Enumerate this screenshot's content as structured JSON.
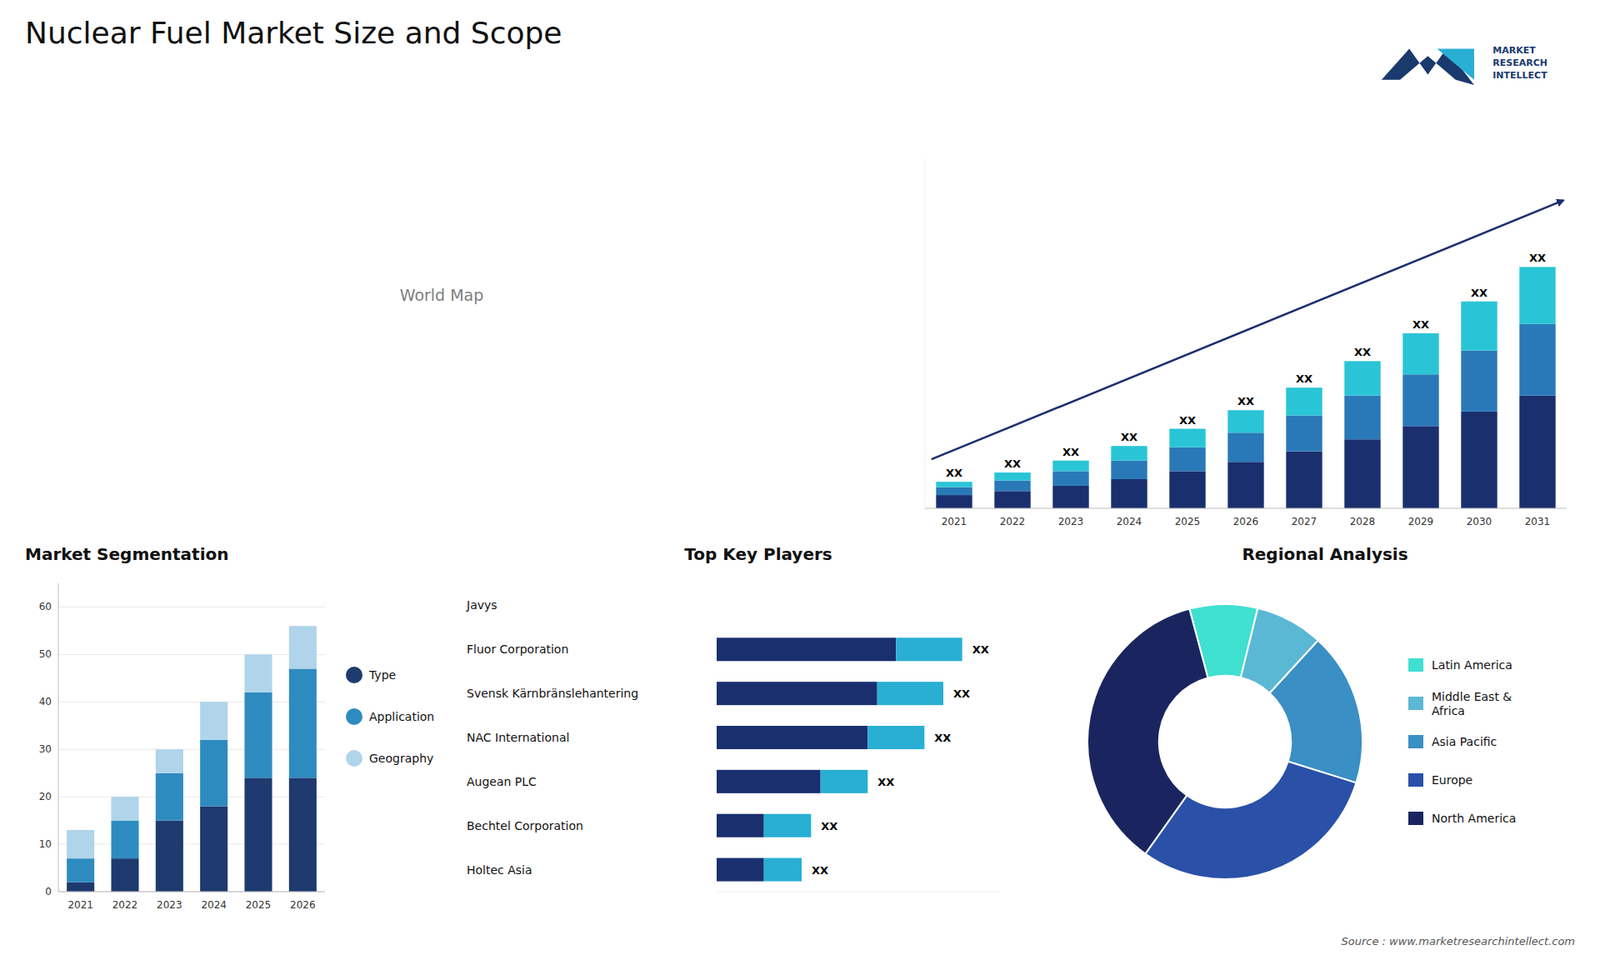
{
  "title": "Nuclear Fuel Market Size and Scope",
  "annotations": [
    "MARKET\nRESEARCH\nINTELLECT",
    "Source : www.marketresearchintellect.com"
  ],
  "chart_data": [
    {
      "type": "map",
      "annotations": [
        "World Map"
      ]
    },
    {
      "type": "bar",
      "stacked": true,
      "categories": [
        "2021",
        "2022",
        "2023",
        "2024",
        "2025",
        "2026",
        "2027",
        "2028",
        "2029",
        "2030",
        "2031"
      ],
      "series": [
        {
          "color": "#1a2f6e",
          "values": [
            1.0,
            1.3,
            1.7,
            2.2,
            2.8,
            3.5,
            4.3,
            5.2,
            6.2,
            7.3,
            8.5
          ]
        },
        {
          "color": "#2979b8",
          "values": [
            0.6,
            0.8,
            1.1,
            1.4,
            1.8,
            2.2,
            2.7,
            3.3,
            3.9,
            4.6,
            5.4
          ]
        },
        {
          "color": "#29c5d6",
          "values": [
            0.4,
            0.6,
            0.8,
            1.1,
            1.4,
            1.7,
            2.1,
            2.6,
            3.1,
            3.7,
            4.3
          ]
        }
      ],
      "ylim": [
        0,
        26.39
      ],
      "tick_labels": "x",
      "grid": false,
      "annotations": [
        "XX",
        "XX",
        "XX",
        "XX",
        "XX",
        "XX",
        "XX",
        "XX",
        "XX",
        "XX",
        "XX"
      ]
    },
    {
      "type": "bar",
      "stacked": true,
      "title": "Market Segmentation",
      "categories": [
        "2021",
        "2022",
        "2023",
        "2024",
        "2025",
        "2026"
      ],
      "series": [
        {
          "name": "Type",
          "color": "#1e3a6e",
          "values": [
            2,
            7,
            15,
            18,
            24,
            24
          ]
        },
        {
          "name": "Application",
          "color": "#2e8bc0",
          "values": [
            5,
            8,
            10,
            14,
            18,
            23
          ]
        },
        {
          "name": "Geography",
          "color": "#b0d4ea",
          "values": [
            6,
            5,
            5,
            8,
            8,
            9
          ]
        }
      ],
      "ylim": [
        0,
        65
      ],
      "yticks": [
        0,
        10,
        20,
        30,
        40,
        50,
        60
      ],
      "grid": true,
      "legend": "right"
    },
    {
      "type": "bar",
      "orientation": "horizontal",
      "stacked": true,
      "title": "Top Key Players",
      "categories": [
        "Javys",
        "Fluor Corporation",
        "Svensk Kärnbränslehantering",
        "NAC International",
        "Augean PLC",
        "Bechtel Corporation",
        "Holtec Asia"
      ],
      "series": [
        {
          "color": "#1a2f6e",
          "values": [
            null,
            0.38,
            0.34,
            0.32,
            0.22,
            0.1,
            0.1
          ]
        },
        {
          "color": "#29afd4",
          "values": [
            null,
            0.14,
            0.14,
            0.12,
            0.1,
            0.1,
            0.08
          ]
        }
      ],
      "xlim": [
        0,
        0.6
      ],
      "tick_labels": "y",
      "annotations": [
        null,
        "XX",
        "XX",
        "XX",
        "XX",
        "XX",
        "XX"
      ]
    },
    {
      "type": "pie",
      "title": "Regional Analysis",
      "categories": [
        "Latin America",
        "Middle East &\nAfrica",
        "Asia Pacific",
        "Europe",
        "North America"
      ],
      "values": [
        8,
        8,
        18,
        30,
        36
      ],
      "colors": [
        "#40e0d0",
        "#5bb8d4",
        "#3a8fc4",
        "#2a50a8",
        "#1a2560"
      ],
      "legend": "right"
    }
  ]
}
